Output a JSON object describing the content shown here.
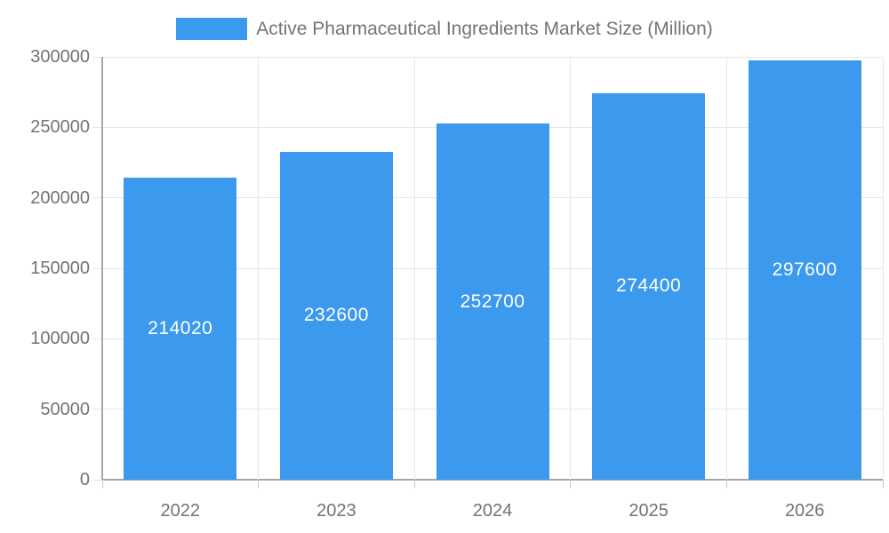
{
  "chart_data": {
    "type": "bar",
    "title": "Active Pharmaceutical Ingredients Market Size (Million)",
    "categories": [
      "2022",
      "2023",
      "2024",
      "2025",
      "2026"
    ],
    "values": [
      214020,
      232600,
      252700,
      274400,
      297600
    ],
    "xlabel": "",
    "ylabel": "",
    "ylim": [
      0,
      300000
    ],
    "ytick_step": 50000,
    "ytick_labels": [
      "0",
      "50000",
      "100000",
      "150000",
      "200000",
      "250000",
      "300000"
    ],
    "grid": true,
    "legend_position": "top",
    "colors": {
      "bar": "#3b99ee",
      "value_label": "#ffffff",
      "axis_text": "#737373",
      "legend_text": "#757575",
      "gridline": "#e6e6e6",
      "axis_line": "#a6a6a6",
      "tick": "#c9c9c9",
      "background": "#ffffff"
    }
  }
}
